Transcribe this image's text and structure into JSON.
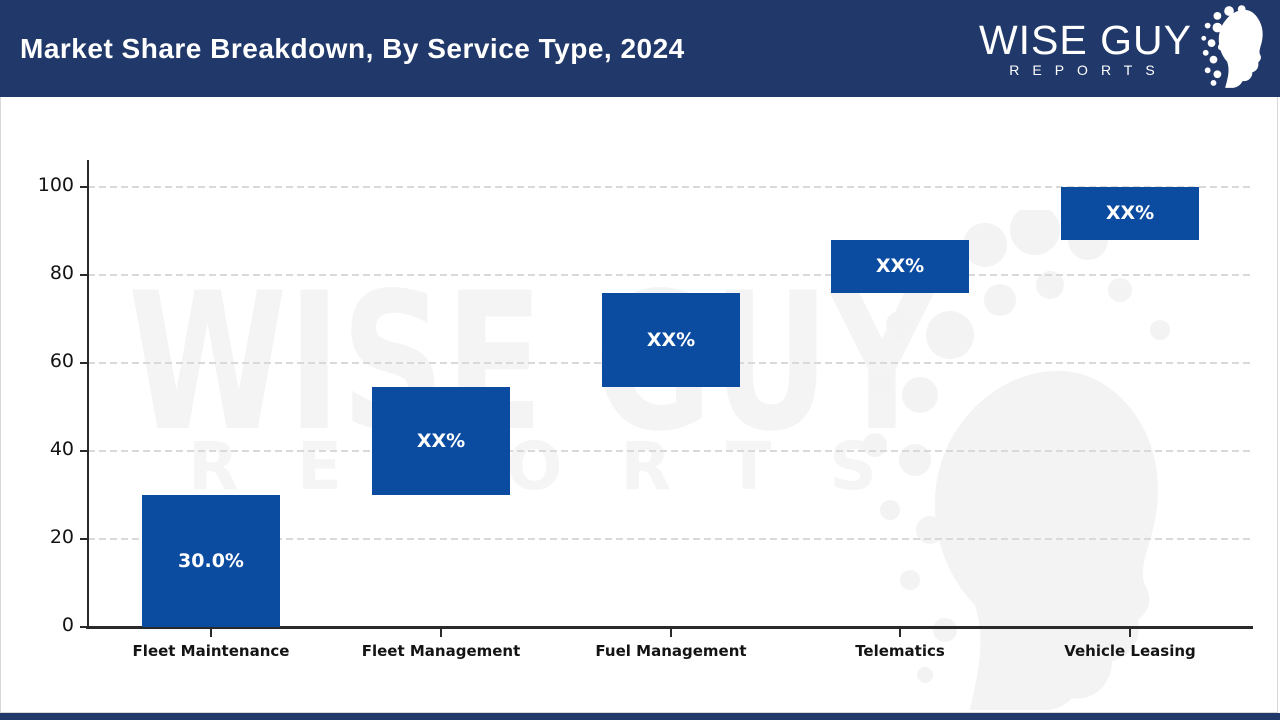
{
  "header": {
    "title": "Market Share Breakdown, By Service Type, 2024",
    "logo": {
      "line1": "WISE GUY",
      "line2": "REPORTS"
    }
  },
  "watermark": {
    "line1": "WISE GUY",
    "line2": "REPORTS"
  },
  "footer": {},
  "chart_data": {
    "type": "bar",
    "subtype": "waterfall",
    "title": "Market Share Breakdown, By Service Type, 2024",
    "categories": [
      "Fleet Maintenance",
      "Fleet Management",
      "Fuel Management",
      "Telematics",
      "Vehicle Leasing"
    ],
    "bars": [
      {
        "category": "Fleet Maintenance",
        "start": 0,
        "end": 30,
        "label": "30.0%"
      },
      {
        "category": "Fleet Management",
        "start": 30,
        "end": 54.5,
        "label": "XX%"
      },
      {
        "category": "Fuel Management",
        "start": 54.5,
        "end": 76,
        "label": "XX%"
      },
      {
        "category": "Telematics",
        "start": 76,
        "end": 88,
        "label": "XX%"
      },
      {
        "category": "Vehicle Leasing",
        "start": 88,
        "end": 100,
        "label": "XX%"
      }
    ],
    "y_ticks": [
      0,
      20,
      40,
      60,
      80,
      100
    ],
    "ylim": [
      0,
      106
    ],
    "xlabel": "",
    "ylabel": "",
    "legend": "none",
    "grid": "horizontal-dashed",
    "bar_color": "#0b4ba0",
    "bar_label_color": "#ffffff",
    "header_color": "#21386a"
  }
}
